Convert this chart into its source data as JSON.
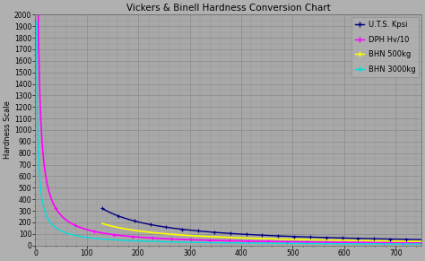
{
  "title": "Vickers & Binell Hardness Conversion Chart",
  "ylabel": "Hardness Scale",
  "ylim": [
    0,
    2000
  ],
  "xlim": [
    0,
    750
  ],
  "fig_bg": "#b0b0b0",
  "plot_bg": "#a8a8a8",
  "grid_color": "#888888",
  "legend_labels": [
    "U.T.S. Kpsi",
    "DPH Hv/10",
    "BHN 500kg",
    "BHN 3000kg"
  ],
  "uts_color": "#000080",
  "dph_color": "#ff00ff",
  "bhn500_color": "#ffff00",
  "bhn3000_color": "#00e0e0",
  "title_fontsize": 7.5,
  "axis_fontsize": 6,
  "legend_fontsize": 6
}
